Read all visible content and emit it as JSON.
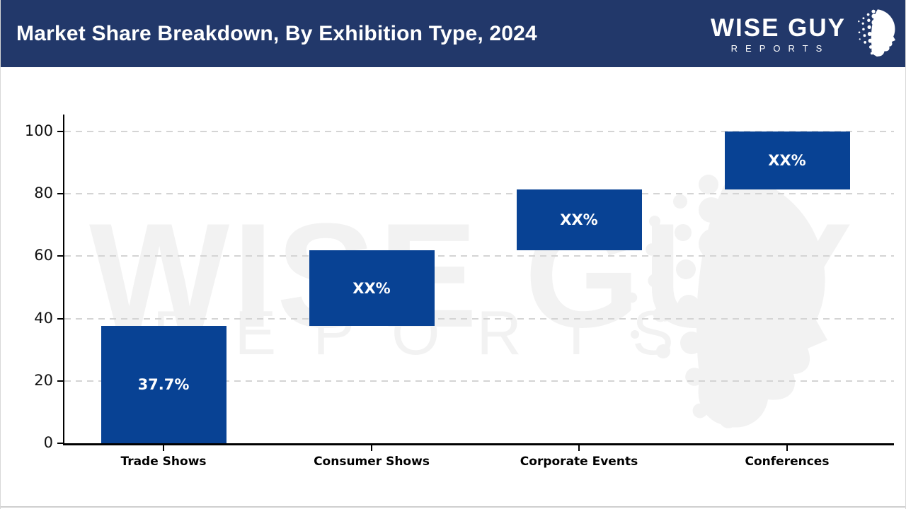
{
  "header": {
    "title": "Market Share Breakdown, By Exhibition Type, 2024",
    "bg_color": "#22386a",
    "logo": {
      "line1": "WISE GUY",
      "line2": "REPORTS"
    }
  },
  "watermark": {
    "line1": "WISE GUY",
    "line2": "REPORTS",
    "color": "#f2f2f2"
  },
  "chart_data": {
    "type": "bar",
    "subtype": "waterfall",
    "title": "Market Share Breakdown, By Exhibition Type, 2024",
    "categories": [
      "Trade Shows",
      "Consumer Shows",
      "Corporate Events",
      "Conferences"
    ],
    "segments": [
      {
        "category": "Trade Shows",
        "start": 0,
        "end": 37.7,
        "label": "37.7%"
      },
      {
        "category": "Consumer Shows",
        "start": 37.7,
        "end": 61.8,
        "label": "XX%"
      },
      {
        "category": "Corporate Events",
        "start": 61.8,
        "end": 81.5,
        "label": "XX%"
      },
      {
        "category": "Conferences",
        "start": 81.5,
        "end": 100,
        "label": "XX%"
      }
    ],
    "y_ticks": [
      0,
      20,
      40,
      60,
      80,
      100
    ],
    "ylim": [
      0,
      105
    ],
    "xlabel": "",
    "ylabel": "",
    "grid": "horizontal-dashed",
    "grid_color": "#d4d4d4",
    "bar_color": "#084294",
    "bar_label_color": "#ffffff",
    "axis_color": "#000000",
    "legend": "none"
  }
}
